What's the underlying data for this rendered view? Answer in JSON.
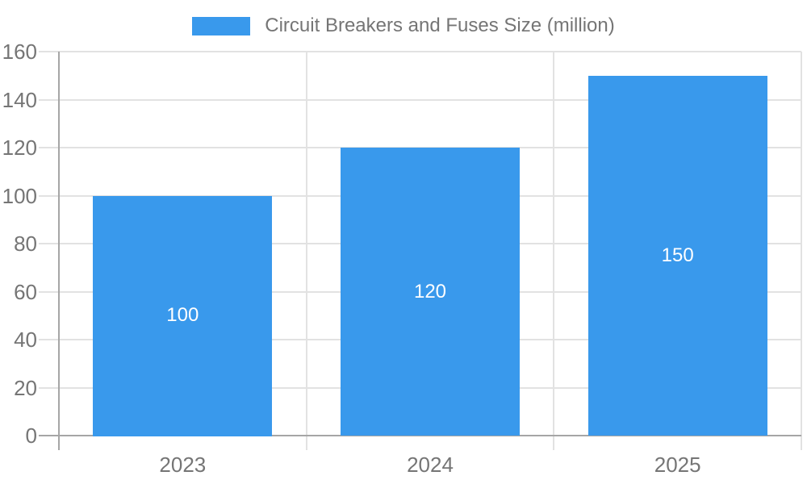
{
  "chart_data": {
    "type": "bar",
    "title": "Circuit Breakers and Fuses Size (million)",
    "categories": [
      "2023",
      "2024",
      "2025"
    ],
    "values": [
      100,
      120,
      150
    ],
    "series": [
      {
        "name": "Circuit Breakers and Fuses Size (million)",
        "values": [
          100,
          120,
          150
        ]
      }
    ],
    "xlabel": "",
    "ylabel": "",
    "ylim": [
      0,
      160
    ],
    "ytick_step": 20,
    "ytick_labels": [
      "0",
      "20",
      "40",
      "60",
      "80",
      "100",
      "120",
      "140",
      "160"
    ],
    "bar_value_labels": [
      "100",
      "120",
      "150"
    ],
    "grid": true,
    "legend_position": "top-center",
    "colors": {
      "bar": "#3999ec",
      "axis_text": "#757575",
      "grid_line": "#e2e2e2",
      "axis_line": "#a6a6a6",
      "bar_label_text": "#ffffff",
      "background": "#ffffff"
    }
  }
}
